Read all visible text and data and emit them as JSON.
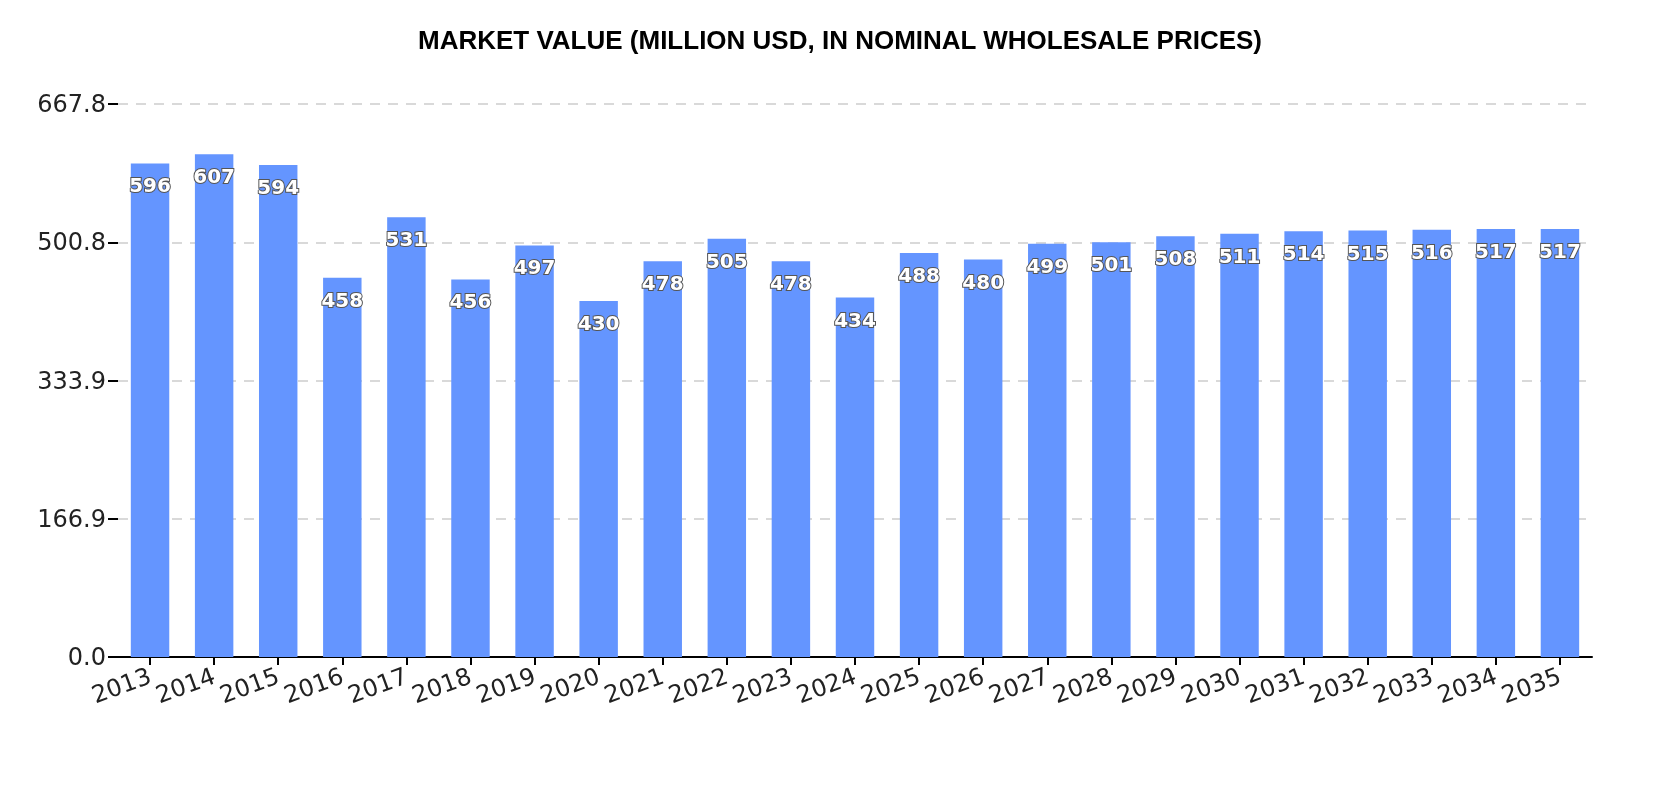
{
  "chart_data": {
    "type": "bar",
    "title": "MARKET VALUE (MILLION USD, IN NOMINAL WHOLESALE PRICES)",
    "categories": [
      "2013",
      "2014",
      "2015",
      "2016",
      "2017",
      "2018",
      "2019",
      "2020",
      "2021",
      "2022",
      "2023",
      "2024",
      "2025",
      "2026",
      "2027",
      "2028",
      "2029",
      "2030",
      "2031",
      "2032",
      "2033",
      "2034",
      "2035"
    ],
    "values": [
      596,
      607,
      594,
      458,
      531,
      456,
      497,
      430,
      478,
      505,
      478,
      434,
      488,
      480,
      499,
      501,
      508,
      511,
      514,
      515,
      516,
      517,
      517
    ],
    "color": "#6495ff",
    "ylim": [
      0,
      667.8
    ],
    "yticks": [
      {
        "value": 0,
        "label": "0.0"
      },
      166.9,
      333.9,
      500.8,
      667.8
    ],
    "grid": "y",
    "data_labels": true
  }
}
